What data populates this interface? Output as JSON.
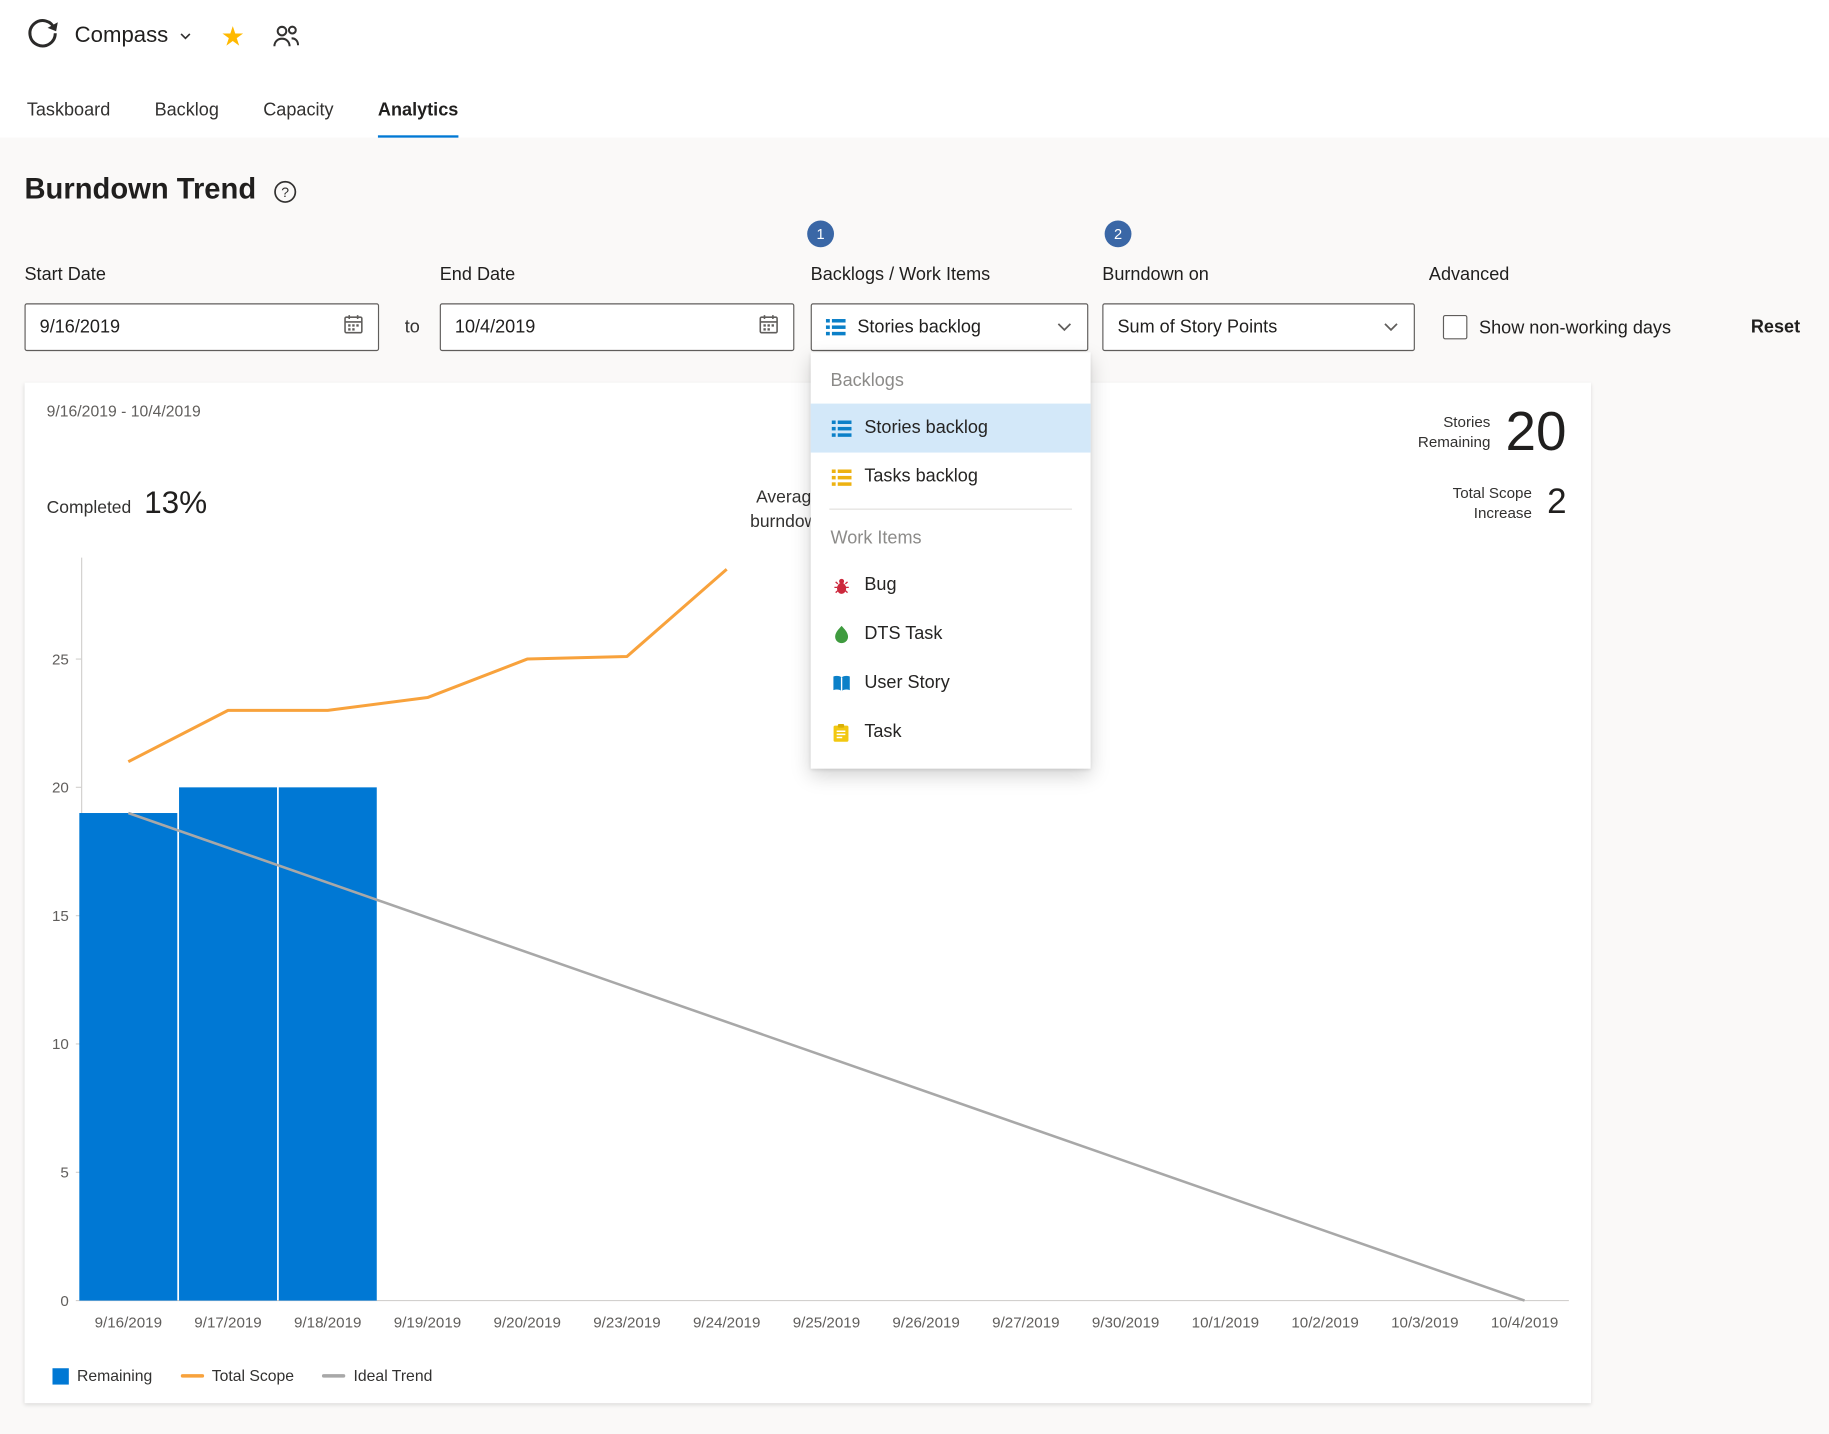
{
  "header": {
    "project_name": "Compass",
    "favorite_icon": "★"
  },
  "tabs": [
    {
      "label": "Taskboard",
      "active": false
    },
    {
      "label": "Backlog",
      "active": false
    },
    {
      "label": "Capacity",
      "active": false
    },
    {
      "label": "Analytics",
      "active": true
    }
  ],
  "page": {
    "title": "Burndown Trend"
  },
  "filters": {
    "start_date": {
      "label": "Start Date",
      "value": "9/16/2019"
    },
    "to_label": "to",
    "end_date": {
      "label": "End Date",
      "value": "10/4/2019"
    },
    "backlogs": {
      "badge": "1",
      "label": "Backlogs / Work Items",
      "value": "Stories backlog",
      "icon": "stories-backlog-icon"
    },
    "burndown_on": {
      "badge": "2",
      "label": "Burndown on",
      "value": "Sum of Story Points"
    },
    "advanced": {
      "label": "Advanced",
      "checkbox_label": "Show non-working days",
      "checked": false,
      "reset_label": "Reset"
    }
  },
  "dropdown_menu": {
    "sections": [
      {
        "header": "Backlogs",
        "items": [
          {
            "label": "Stories backlog",
            "icon": "stories-backlog-icon",
            "selected": true
          },
          {
            "label": "Tasks backlog",
            "icon": "tasks-backlog-icon",
            "selected": false
          }
        ]
      },
      {
        "header": "Work Items",
        "items": [
          {
            "label": "Bug",
            "icon": "bug-icon",
            "selected": false
          },
          {
            "label": "DTS Task",
            "icon": "dts-task-icon",
            "selected": false
          },
          {
            "label": "User Story",
            "icon": "user-story-icon",
            "selected": false
          },
          {
            "label": "Task",
            "icon": "task-icon",
            "selected": false
          }
        ]
      }
    ]
  },
  "summary": {
    "date_range": "9/16/2019 - 10/4/2019",
    "completed_label": "Completed",
    "completed_value": "13%",
    "average_line1": "Average",
    "average_line2": "burndown",
    "stories_label1": "Stories",
    "stories_label2": "Remaining",
    "stories_value": "20",
    "scope_label1": "Total Scope",
    "scope_label2": "Increase",
    "scope_value": "2"
  },
  "colors": {
    "accent": "#0078d4",
    "badge": "#3a67a6",
    "star": "#ffb900",
    "selected_item_bg": "#d3e8f9",
    "bar": "#0078d4",
    "total_scope_line": "#f8a23c",
    "ideal_trend_line": "#a8a8a8"
  },
  "chart_data": {
    "type": "bar",
    "title": "Burndown Trend",
    "categories": [
      "9/16/2019",
      "9/17/2019",
      "9/18/2019",
      "9/19/2019",
      "9/20/2019",
      "9/23/2019",
      "9/24/2019",
      "9/25/2019",
      "9/26/2019",
      "9/27/2019",
      "9/30/2019",
      "10/1/2019",
      "10/2/2019",
      "10/3/2019",
      "10/4/2019"
    ],
    "xlabel": "",
    "ylabel": "",
    "ylim": [
      0,
      28.6
    ],
    "yticks": [
      0,
      5,
      10,
      15,
      20,
      25
    ],
    "grid": false,
    "legend_position": "bottom-left",
    "series": [
      {
        "name": "Remaining",
        "type": "bar",
        "color": "#0078d4",
        "values": [
          19,
          20,
          20,
          null,
          null,
          null,
          null,
          null,
          null,
          null,
          null,
          null,
          null,
          null,
          null
        ]
      },
      {
        "name": "Total Scope",
        "type": "line",
        "color": "#f8a23c",
        "values": [
          21,
          23,
          23,
          23.5,
          25,
          25.1,
          28.5,
          null,
          null,
          null,
          null,
          null,
          null,
          null,
          null
        ]
      },
      {
        "name": "Ideal Trend",
        "type": "line",
        "color": "#a8a8a8",
        "values": [
          19,
          null,
          null,
          null,
          null,
          null,
          null,
          null,
          null,
          null,
          null,
          null,
          null,
          null,
          0
        ]
      }
    ]
  }
}
